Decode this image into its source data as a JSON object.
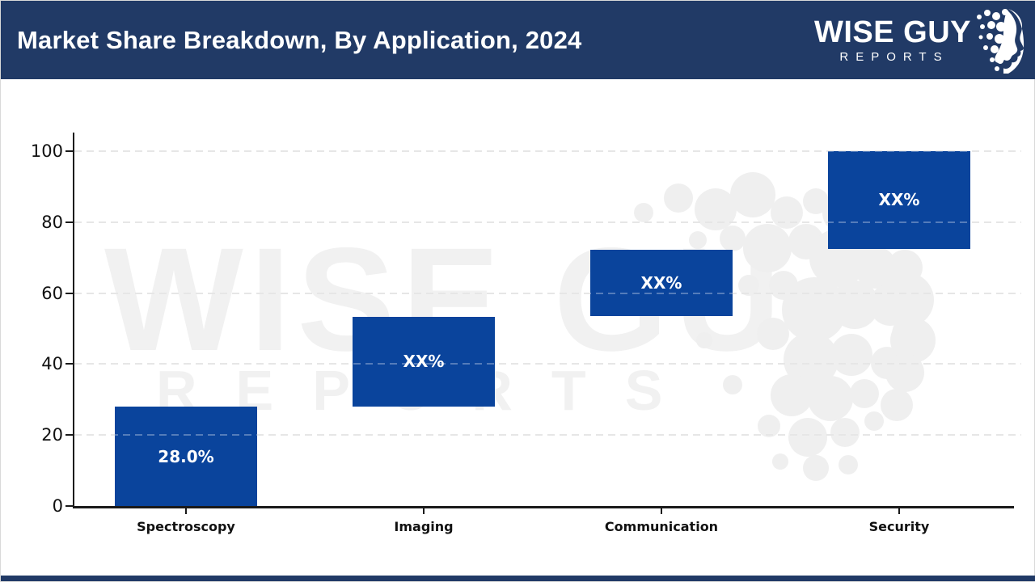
{
  "header": {
    "title": "Market Share Breakdown, By Application, 2024",
    "bg_color": "#213a66",
    "logo": {
      "line1": "WISE GUY",
      "line2": "REPORTS"
    }
  },
  "watermark": {
    "line1": "WISE GU",
    "line2": "REPORTS"
  },
  "chart_data": {
    "type": "bar",
    "subtype": "floating-waterfall",
    "title": "Market Share Breakdown, By Application, 2024",
    "categories": [
      "Spectroscopy",
      "Imaging",
      "Communication",
      "Security"
    ],
    "bars": [
      {
        "category": "Spectroscopy",
        "start": 0,
        "end": 28,
        "label": "28.0%"
      },
      {
        "category": "Imaging",
        "start": 28,
        "end": 53.4,
        "label": "XX%"
      },
      {
        "category": "Communication",
        "start": 53.5,
        "end": 72.3,
        "label": "XX%"
      },
      {
        "category": "Security",
        "start": 72.5,
        "end": 100,
        "label": "XX%"
      }
    ],
    "yticks": [
      0,
      20,
      40,
      60,
      80,
      100
    ],
    "ylim": [
      0,
      105
    ],
    "xlabel": "",
    "ylabel": "",
    "bar_color": "#0a449c",
    "grid": "horizontal-dashed",
    "gridline_color": "#dcdcdc",
    "legend": "none"
  },
  "footer": {
    "bg_color": "#213a66"
  }
}
